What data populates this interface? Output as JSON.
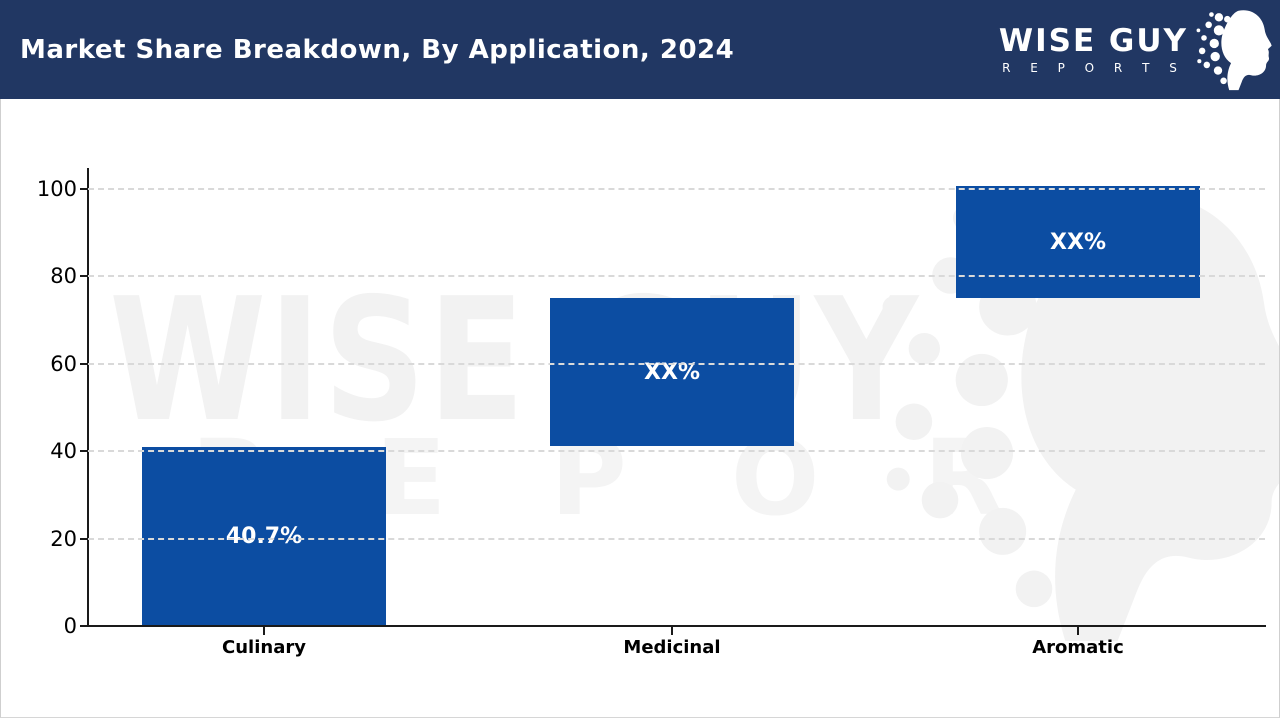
{
  "header": {
    "title": "Market Share Breakdown, By Application, 2024",
    "logo": {
      "line1": "WISE GUY",
      "line2": "R E P O R T S"
    }
  },
  "watermark": {
    "line1": "WISE GUY",
    "line2": "R E P O R T S"
  },
  "chart_data": {
    "type": "bar",
    "subtype": "waterfall",
    "title": "Market Share Breakdown, By Application, 2024",
    "categories": [
      "Culinary",
      "Medicinal",
      "Aromatic"
    ],
    "segments": [
      {
        "category": "Culinary",
        "start": 0,
        "end": 40.7,
        "label": "40.7%"
      },
      {
        "category": "Medicinal",
        "start": 41.0,
        "end": 74.8,
        "label": "XX%"
      },
      {
        "category": "Aromatic",
        "start": 74.9,
        "end": 100.5,
        "label": "XX%"
      }
    ],
    "xlabel": "",
    "ylabel": "",
    "ylim": [
      0,
      104
    ],
    "yticks": [
      0,
      20,
      40,
      60,
      80,
      100
    ],
    "grid": "horizontal-dashed",
    "legend": "none",
    "colors": {
      "bar": "#0c4da2",
      "bar_label": "#ffffff",
      "header_bg": "#213763",
      "grid": "#d9d9d9",
      "axis": "#000000",
      "watermark": "#f2f2f2"
    }
  }
}
